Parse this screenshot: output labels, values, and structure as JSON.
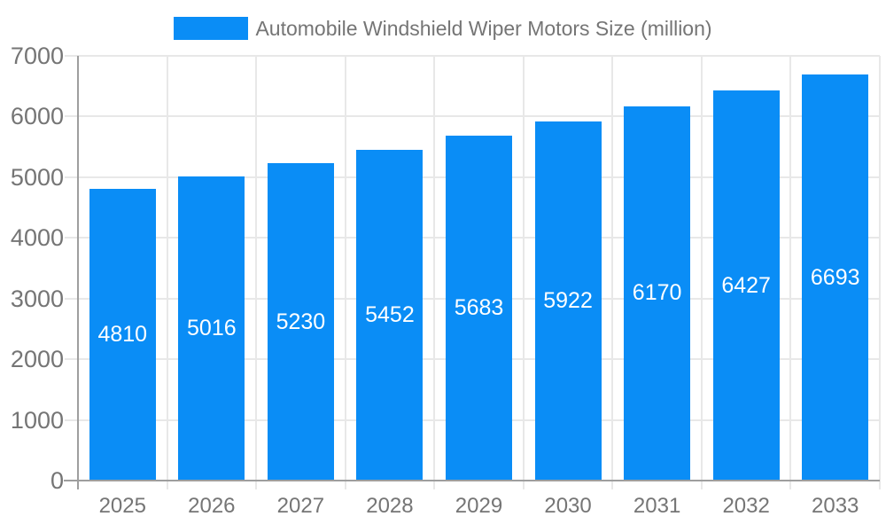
{
  "chart_data": {
    "type": "bar",
    "title": "Automobile Windshield Wiper Motors Size (million)",
    "legend": {
      "position": "top",
      "entries": [
        "Automobile Windshield Wiper Motors Size (million)"
      ]
    },
    "categories": [
      "2025",
      "2026",
      "2027",
      "2028",
      "2029",
      "2030",
      "2031",
      "2032",
      "2033"
    ],
    "series": [
      {
        "name": "Automobile Windshield Wiper Motors Size (million)",
        "values": [
          4810,
          5016,
          5230,
          5452,
          5683,
          5922,
          6170,
          6427,
          6693
        ]
      }
    ],
    "data_labels": [
      "4810",
      "5016",
      "5230",
      "5452",
      "5683",
      "5922",
      "6170",
      "6427",
      "6693"
    ],
    "data_label_position": "inside-center",
    "xlabel": "",
    "ylabel": "",
    "ylim": [
      0,
      7000
    ],
    "yticks": [
      0,
      1000,
      2000,
      3000,
      4000,
      5000,
      6000,
      7000
    ],
    "grid": "on",
    "colors": {
      "bar": "#0A8DF6",
      "bar_label_text": "#FFFFFF",
      "axis_text": "#757575",
      "axis_line": "#9E9E9E",
      "gridline": "#E8E8E8",
      "background": "#FFFFFF"
    }
  }
}
